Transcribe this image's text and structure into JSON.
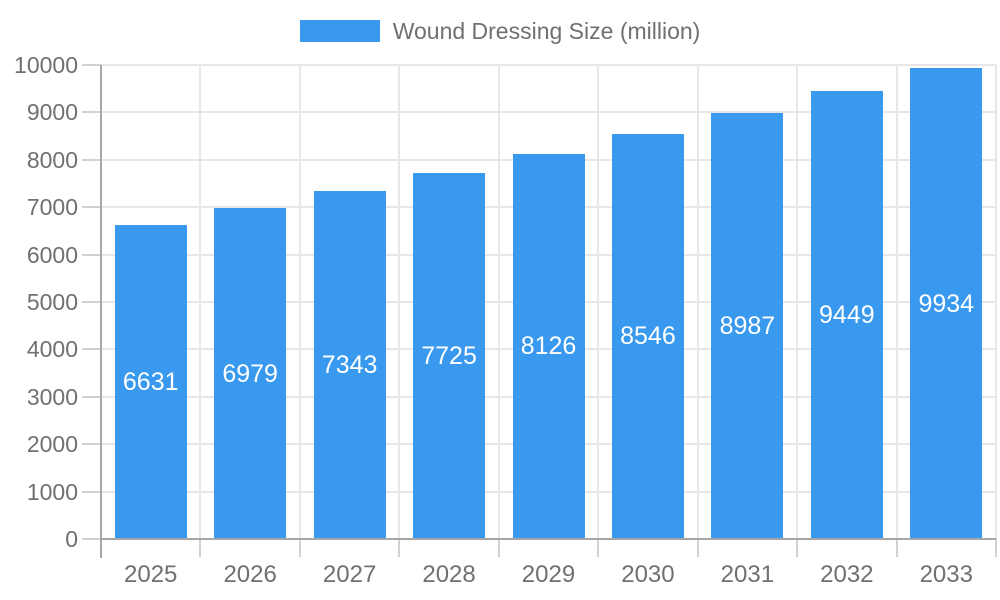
{
  "legend": {
    "label": "Wound Dressing Size (million)"
  },
  "chart_data": {
    "type": "bar",
    "title": "",
    "categories": [
      "2025",
      "2026",
      "2027",
      "2028",
      "2029",
      "2030",
      "2031",
      "2032",
      "2033"
    ],
    "series": [
      {
        "name": "Wound Dressing Size (million)",
        "values": [
          6631,
          6979,
          7343,
          7725,
          8126,
          8546,
          8987,
          9449,
          9934
        ]
      }
    ],
    "xlabel": "",
    "ylabel": "",
    "ylim": [
      0,
      10000
    ],
    "y_tick_step": 1000,
    "y_tick_labels": [
      "0",
      "1000",
      "2000",
      "3000",
      "4000",
      "5000",
      "6000",
      "7000",
      "8000",
      "9000",
      "10000"
    ],
    "grid": true,
    "legend_position": "top-center",
    "bar_value_labels": "inside-middle"
  },
  "colors": {
    "bar": "#3999EE",
    "bar_value_text": "#FFFFFF",
    "gridline": "#E7E7E7",
    "axis_line": "#A6A6A6",
    "tick": "#D2D2D2",
    "label_text": "#707070",
    "background": "#FFFFFF"
  }
}
